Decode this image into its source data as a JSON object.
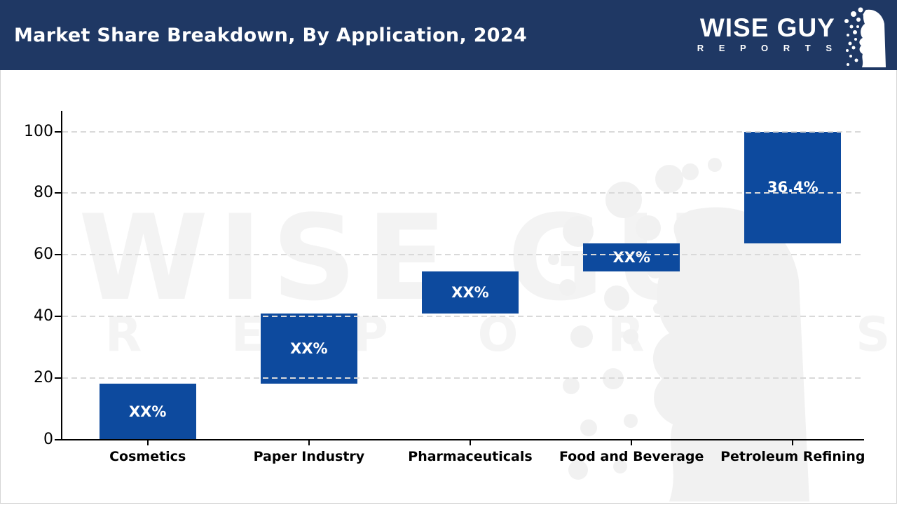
{
  "header": {
    "bg_color": "#1f3864",
    "title": "Market Share Breakdown, By Application, 2024",
    "logo": {
      "line1": "WISE GUY",
      "line2": "R E P O R T S"
    }
  },
  "watermark": {
    "line1": "WISE GUY",
    "line2": "R E P O R T S"
  },
  "chart_data": {
    "type": "bar",
    "variant": "waterfall",
    "title": "Market Share Breakdown, By Application, 2024",
    "xlabel": "",
    "ylabel": "",
    "ylim": [
      0,
      100
    ],
    "yticks": [
      0,
      20,
      40,
      60,
      80,
      100
    ],
    "grid": "horizontal dashed, drawn over bars",
    "legend": "none",
    "bar_color": "#0d4a9e",
    "gridline_color": "#d9d9d9",
    "categories": [
      "Cosmetics",
      "Paper Industry",
      "Pharmaceuticals",
      "Food and Beverage",
      "Petroleum Refining"
    ],
    "segments": [
      {
        "category": "Cosmetics",
        "start": 0,
        "end": 18.2,
        "label": "XX%"
      },
      {
        "category": "Paper Industry",
        "start": 18.2,
        "end": 41.0,
        "label": "XX%"
      },
      {
        "category": "Pharmaceuticals",
        "start": 41.0,
        "end": 54.6,
        "label": "XX%"
      },
      {
        "category": "Food and Beverage",
        "start": 54.6,
        "end": 63.6,
        "label": "XX%"
      },
      {
        "category": "Petroleum Refining",
        "start": 63.6,
        "end": 100,
        "label": "36.4%"
      }
    ]
  }
}
